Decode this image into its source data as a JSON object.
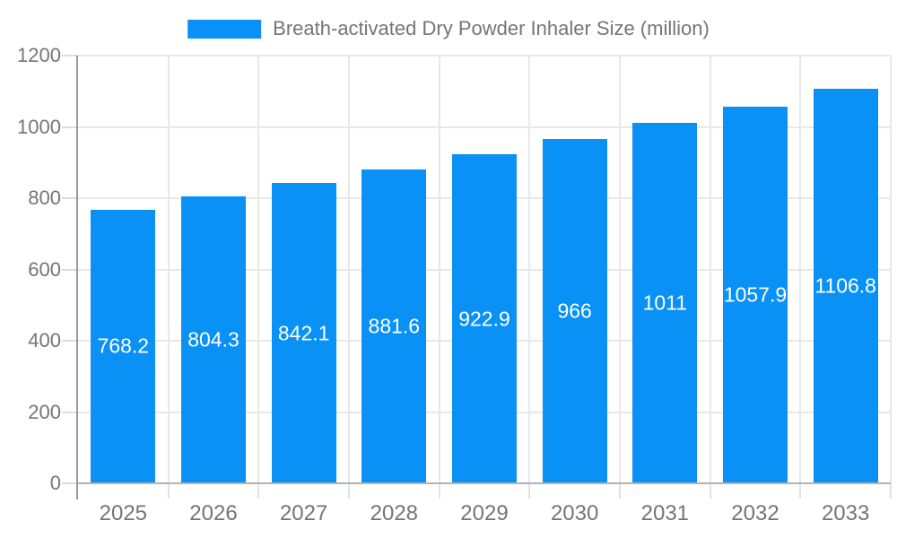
{
  "chart_data": {
    "type": "bar",
    "title": "Breath-activated Dry Powder Inhaler Size (million)",
    "categories": [
      "2025",
      "2026",
      "2027",
      "2028",
      "2029",
      "2030",
      "2031",
      "2032",
      "2033"
    ],
    "values": [
      768.2,
      804.3,
      842.1,
      881.6,
      922.9,
      966,
      1011,
      1057.9,
      1106.8
    ],
    "value_labels": [
      "768.2",
      "804.3",
      "842.1",
      "881.6",
      "922.9",
      "966",
      "1011",
      "1057.9",
      "1106.8"
    ],
    "xlabel": "",
    "ylabel": "",
    "ylim": [
      0,
      1200
    ],
    "y_ticks": [
      0,
      200,
      400,
      600,
      800,
      1000,
      1200
    ],
    "grid": "on",
    "legend_position": "top",
    "colors": {
      "bar": "#0991f6",
      "bar_value_text": "#ffffff",
      "axis_text": "#757575",
      "gridline": "#e8e8e8",
      "y_axis_line": "#999999",
      "x_axis_line": "#b3b3b3"
    }
  }
}
